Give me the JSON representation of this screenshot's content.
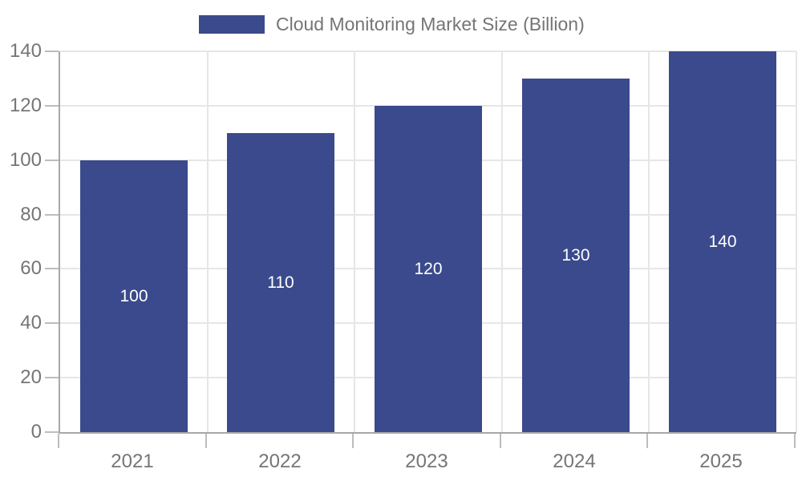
{
  "chart_data": {
    "type": "bar",
    "legend": "Cloud Monitoring Market Size (Billion)",
    "legend_position": "top",
    "categories": [
      "2021",
      "2022",
      "2023",
      "2024",
      "2025"
    ],
    "values": [
      100,
      110,
      120,
      130,
      140
    ],
    "xlabel": "",
    "ylabel": "",
    "ylim": [
      0,
      140
    ],
    "yticks": [
      0,
      20,
      40,
      60,
      80,
      100,
      120,
      140
    ],
    "grid": true,
    "bar_labels": [
      "100",
      "110",
      "120",
      "130",
      "140"
    ],
    "colors": {
      "bar": "#3A4A8C",
      "bar_label": "#ffffff",
      "axis_text": "#757575",
      "grid_line": "#e6e6e6",
      "axis_line": "#a8a8a8",
      "tick_line": "#bdbdbd",
      "background": "#ffffff"
    }
  }
}
